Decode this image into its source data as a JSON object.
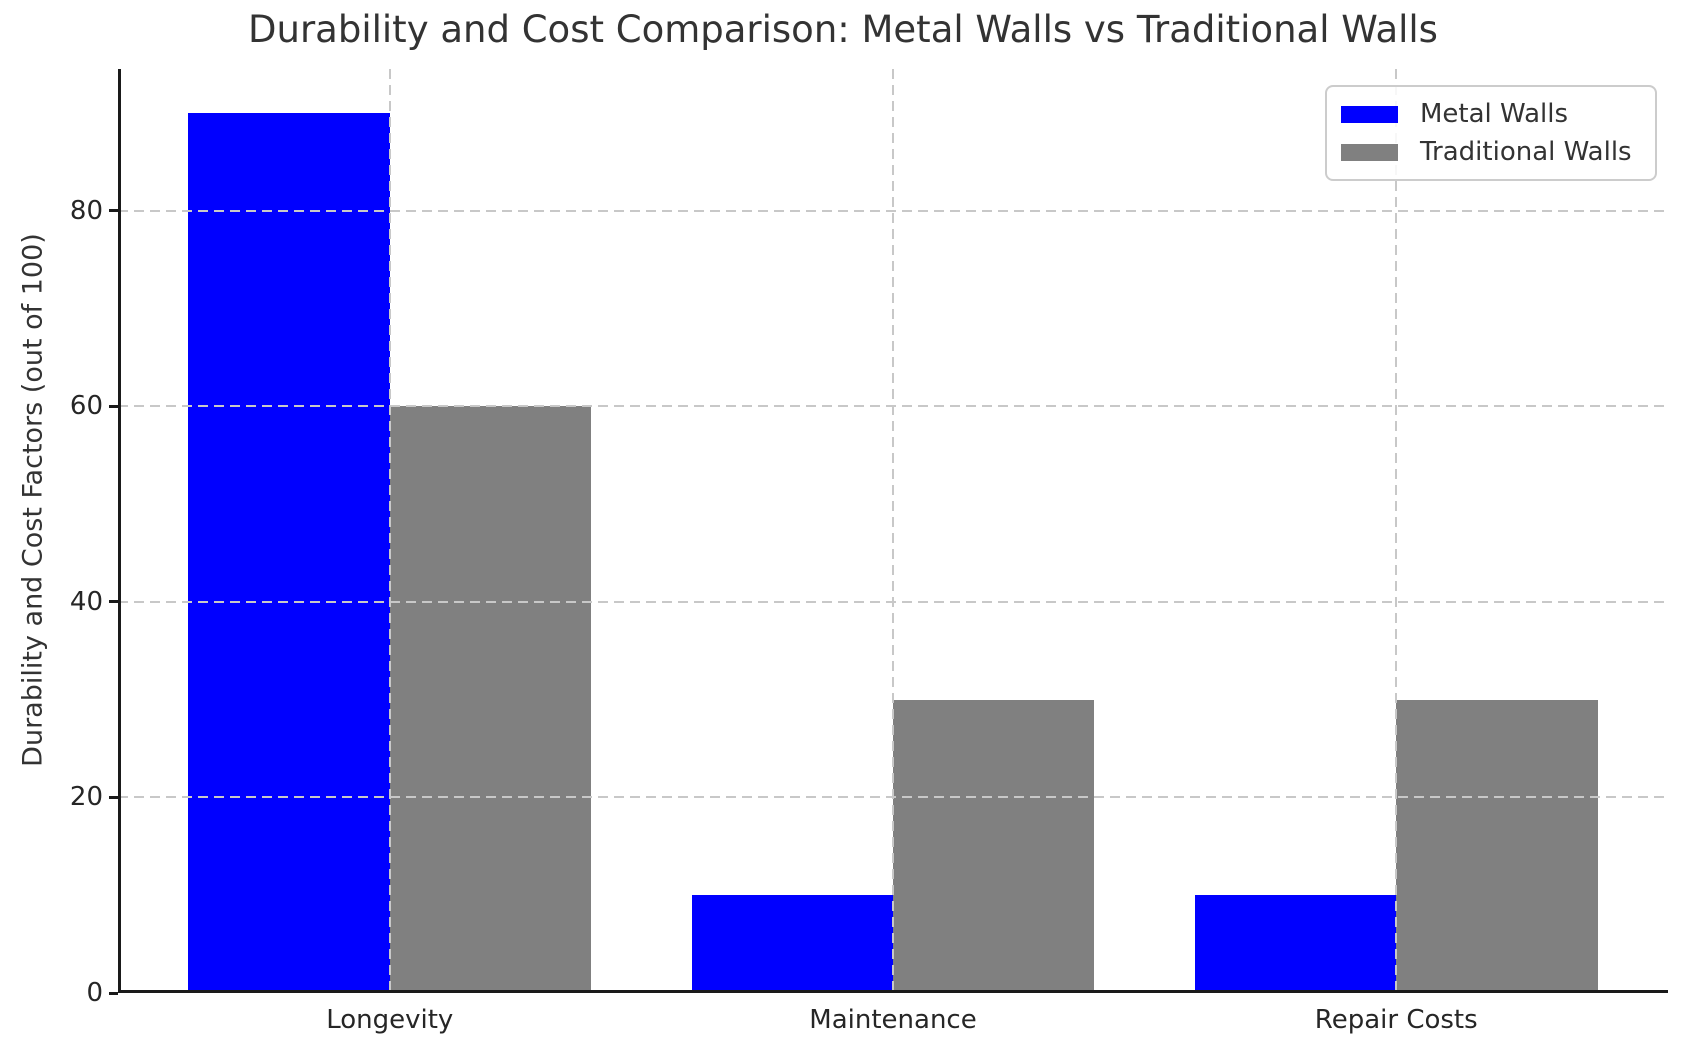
{
  "chart_data": {
    "type": "bar",
    "title": "Durability and Cost Comparison: Metal Walls vs Traditional Walls",
    "categories": [
      "Longevity",
      "Maintenance",
      "Repair Costs"
    ],
    "series": [
      {
        "name": "Metal Walls",
        "color": "#0000ff",
        "values": [
          90,
          10,
          10
        ]
      },
      {
        "name": "Traditional Walls",
        "color": "#808080",
        "values": [
          60,
          30,
          30
        ]
      }
    ],
    "xlabel": "",
    "ylabel": "Durability and Cost Factors (out of 100)",
    "ylim": [
      0,
      94.5
    ],
    "yticks": [
      0,
      20,
      40,
      60,
      80
    ],
    "bar_width": 0.4,
    "grid": true,
    "grid_style": "dashed",
    "grid_above_bars": true,
    "legend_position": "upper right",
    "colors": {
      "axis": "#1a1a1a",
      "grid": "#c8c8c8",
      "text": "#333333",
      "tick_text": "#262626"
    }
  }
}
